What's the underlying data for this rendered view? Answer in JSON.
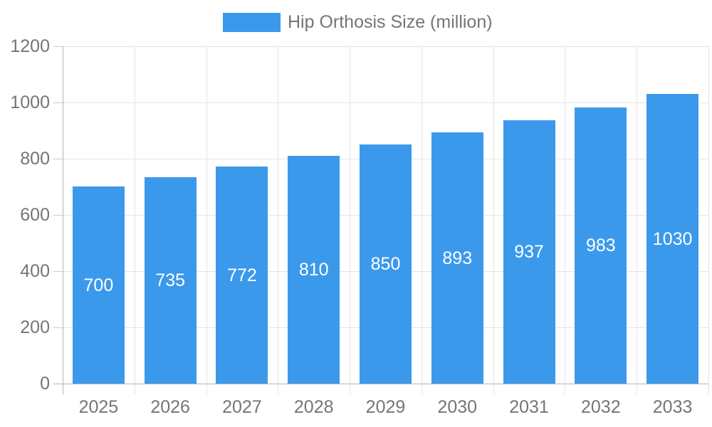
{
  "chart_data": {
    "type": "bar",
    "series_name": "Hip Orthosis Size (million)",
    "categories": [
      "2025",
      "2026",
      "2027",
      "2028",
      "2029",
      "2030",
      "2031",
      "2032",
      "2033"
    ],
    "values": [
      700,
      735,
      772,
      810,
      850,
      893,
      937,
      983,
      1030
    ],
    "yticks": [
      0,
      200,
      400,
      600,
      800,
      1000,
      1200
    ],
    "ylim": [
      0,
      1200
    ],
    "xlabel": "",
    "ylabel": "",
    "grid": true,
    "legend_position": "top",
    "value_labels": "inside-middle",
    "colors": {
      "bar": "#3B99EC",
      "bar_value_text": "#FFFFFF",
      "axis_text": "#757575",
      "grid_line": "#E4E4E4",
      "axis_line": "#B3B3B3",
      "tick_line": "#CCCCCC"
    }
  },
  "legend": {
    "label": "Hip Orthosis Size (million)"
  }
}
